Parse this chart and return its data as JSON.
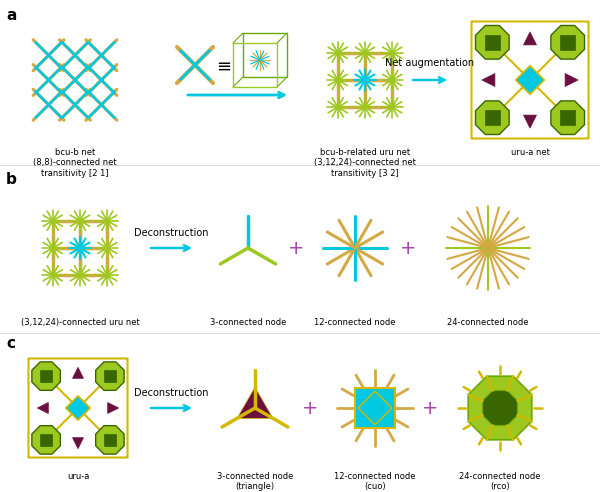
{
  "background_color": "#ffffff",
  "panel_labels": [
    "a",
    "b",
    "c"
  ],
  "colors": {
    "cyan": "#00c8e0",
    "green_lime": "#9dc820",
    "tan": "#d4a843",
    "dark_green": "#6aaa00",
    "olive": "#4a7a00",
    "purple": "#6a1040",
    "arrow_blue": "#00aadd",
    "arrow_black": "#333333",
    "text_color": "#222222",
    "plus_color": "#aa44aa",
    "yellow_gold": "#d4b800",
    "green_dark2": "#3a6600"
  },
  "section_a": {
    "captions": [
      "bcu-b net\n(8,8)-connected net\ntransitivity [2 1]",
      "bcu-b-related uru net\n(3,12,24)-connected net\ntransitivity [3 2]",
      "uru-a net"
    ],
    "arrow_text": "Net augmentation"
  },
  "section_b": {
    "captions": [
      "(3,12,24)-connected uru net",
      "3-connected node",
      "12-connected node",
      "24-connected node"
    ],
    "arrow_text": "Deconstruction"
  },
  "section_c": {
    "captions": [
      "uru-a",
      "3-connected node\n(triangle)",
      "12-connected node\n(cuo)",
      "24-connected node\n(rco)"
    ],
    "arrow_text": "Deconstruction"
  }
}
